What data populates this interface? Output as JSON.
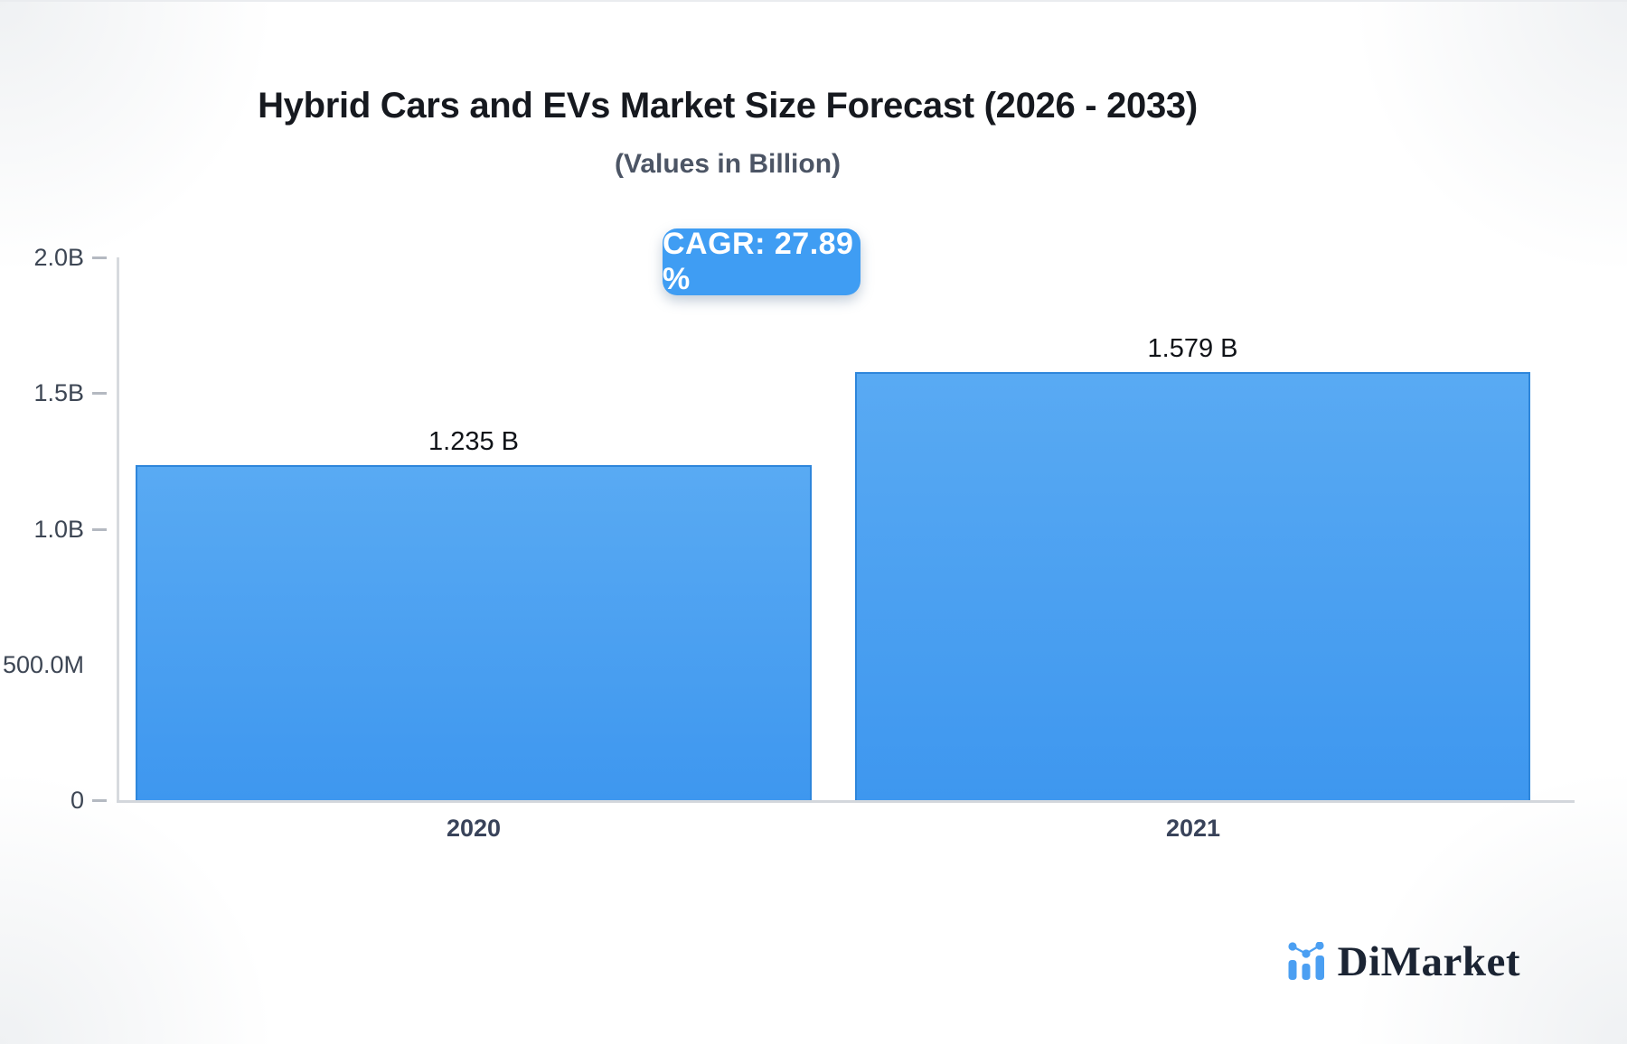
{
  "header": {
    "title": "Hybrid Cars and EVs Market Size Forecast (2026 - 2033)",
    "subtitle": "(Values in Billion)",
    "cagr_badge": "CAGR: 27.89 %"
  },
  "chart_data": {
    "type": "bar",
    "title": "Hybrid Cars and EVs Market Size Forecast (2026 - 2033)",
    "subtitle": "(Values in Billion)",
    "cagr_percent": 27.89,
    "categories": [
      "2020",
      "2021"
    ],
    "values": [
      1.235,
      1.579
    ],
    "bar_labels": [
      "1.235 B",
      "1.579 B"
    ],
    "ylim": [
      0,
      2.0
    ],
    "yticks": [
      {
        "label": "2.0B",
        "dash": true
      },
      {
        "label": "1.5B",
        "dash": true
      },
      {
        "label": "1.0B",
        "dash": true
      },
      {
        "label": "500.0M",
        "dash": false
      },
      {
        "label": "0",
        "dash": true
      }
    ],
    "xlabel": "",
    "ylabel": "",
    "grid": false,
    "legend": false,
    "bar_color_top": "#59aaf3",
    "bar_color_bottom": "#3e97ef",
    "bar_border_color": "#2e86db"
  },
  "branding": {
    "logo_text": "DiMarket",
    "logo_icon": "mini-bar-chart-with-trend-dots",
    "logo_text_color": "#1b2433",
    "logo_blue": "#4b9ff2"
  },
  "colors": {
    "accent_blue": "#3f9df3",
    "axis_line": "#d7dade",
    "tick_dash": "#b4b9c1",
    "tick_text": "#3d4654",
    "title_text": "#16191f",
    "subtitle_text": "#4c5565",
    "background": "#ffffff"
  }
}
